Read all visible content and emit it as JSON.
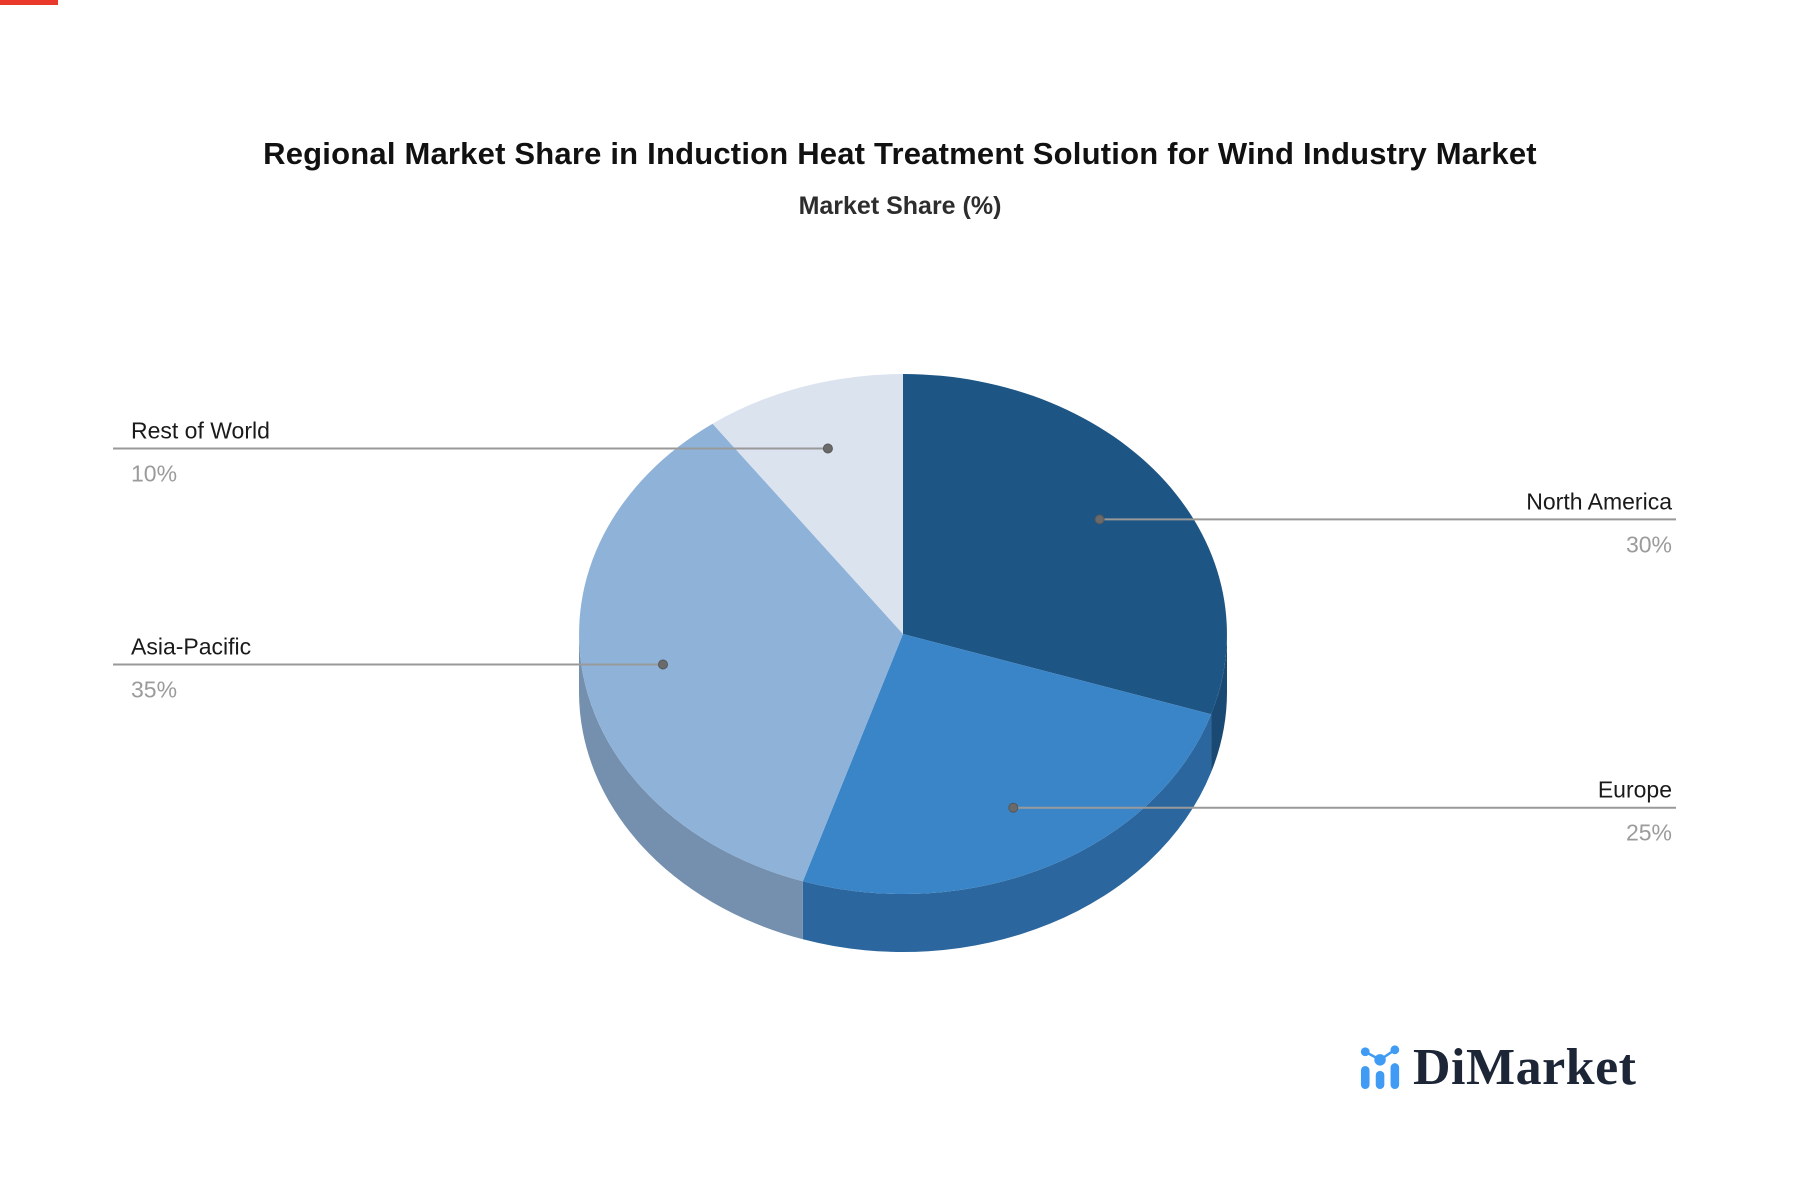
{
  "chart_data": {
    "type": "pie",
    "title": "Regional Market Share in Induction Heat Treatment Solution for Wind Industry Market",
    "subtitle": "Market Share (%)",
    "unit": "%",
    "effect_3d": true,
    "start_angle_deg": 90,
    "direction": "clockwise",
    "legend_position": "none",
    "slices": [
      {
        "label": "North America",
        "value": 30,
        "pct_label": "30%",
        "color": "#1d5585",
        "side_color": "#1a4a74"
      },
      {
        "label": "Europe",
        "value": 25,
        "pct_label": "25%",
        "color": "#3a85c8",
        "side_color": "#2b679e"
      },
      {
        "label": "Asia-Pacific",
        "value": 35,
        "pct_label": "35%",
        "color": "#8fb2d9",
        "side_color": "#7490ae"
      },
      {
        "label": "Rest of World",
        "value": 10,
        "pct_label": "10%",
        "color": "#dbe3ef"
      }
    ],
    "callout_style": {
      "line_color": "#999999",
      "dot_color": "#6a6a6a",
      "label_color": "#1a1a1a",
      "pct_color": "#9b9b9b"
    }
  },
  "logo": {
    "text": "DiMarket",
    "icon": "bar-line-chart-icon",
    "icon_color": "#3f9bf4",
    "text_color": "#1c2637"
  },
  "decorations": {
    "top_left_red_mark_color": "#e8392b"
  }
}
